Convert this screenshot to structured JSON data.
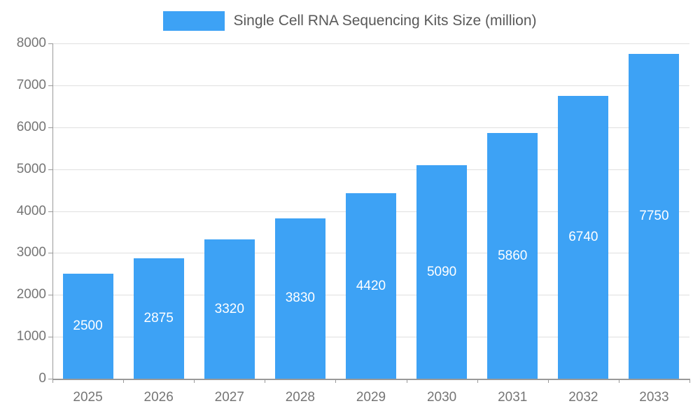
{
  "legend": {
    "label": "Single Cell RNA Sequencing Kits Size (million)"
  },
  "colors": {
    "bar": "#3DA2F5",
    "gridline": "#e0e0e0",
    "axis": "#999999",
    "tick_label": "#757575",
    "legend_text": "#595959",
    "value_label": "#ffffff",
    "background": "#ffffff"
  },
  "chart_data": {
    "type": "bar",
    "title": "Single Cell RNA Sequencing Kits Size (million)",
    "categories": [
      "2025",
      "2026",
      "2027",
      "2028",
      "2029",
      "2030",
      "2031",
      "2032",
      "2033"
    ],
    "values": [
      2500,
      2875,
      3320,
      3830,
      4420,
      5090,
      5860,
      6740,
      7750
    ],
    "xlabel": "",
    "ylabel": "",
    "ylim": [
      0,
      8000
    ],
    "y_ticks": [
      0,
      1000,
      2000,
      3000,
      4000,
      5000,
      6000,
      7000,
      8000
    ],
    "bar_color": "#3DA2F5",
    "value_label_color": "#ffffff",
    "grid": true,
    "legend_position": "top"
  }
}
